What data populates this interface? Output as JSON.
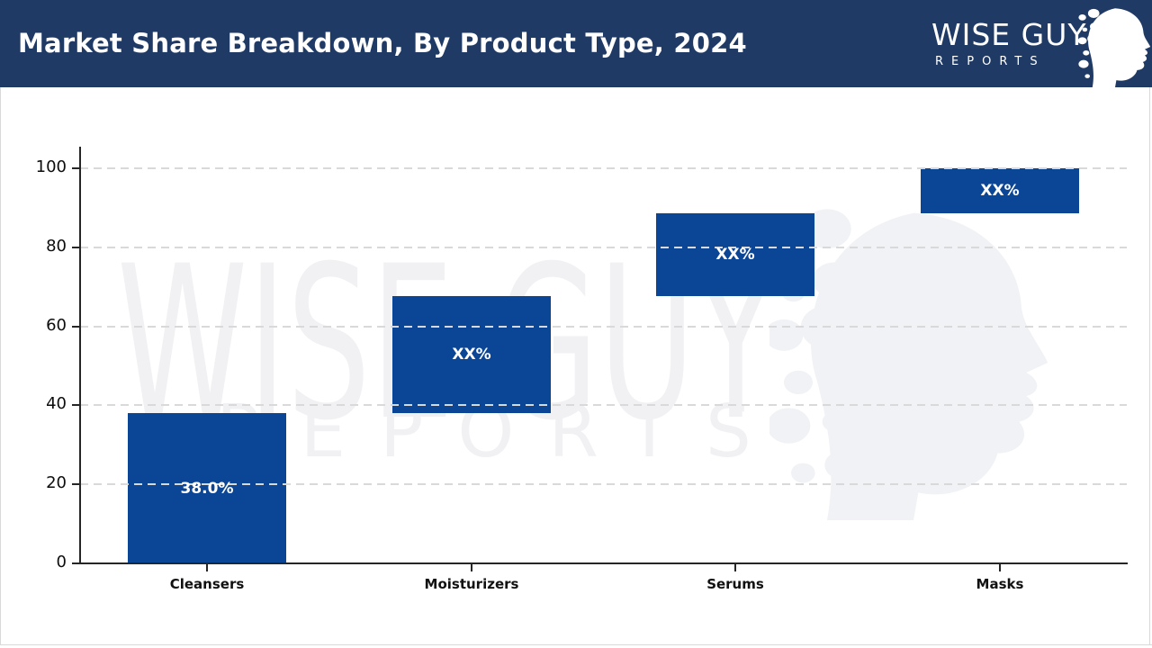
{
  "header": {
    "title": "Market Share Breakdown, By Product Type, 2024",
    "bg_color": "#203a66",
    "logo": {
      "line1": "WISE GUY",
      "line2": "REPORTS"
    }
  },
  "watermark": {
    "line1": "WISE GUY",
    "line2": "REPORTS"
  },
  "chart_data": {
    "type": "bar",
    "subtype": "waterfall",
    "title": "Market Share Breakdown, By Product Type, 2024",
    "categories": [
      "Cleansers",
      "Moisturizers",
      "Serums",
      "Masks"
    ],
    "series": [
      {
        "name": "Cleansers",
        "start": 0,
        "end": 38.0,
        "label": "38.0%"
      },
      {
        "name": "Moisturizers",
        "start": 38.0,
        "end": 67.6,
        "label": "XX%"
      },
      {
        "name": "Serums",
        "start": 67.6,
        "end": 88.6,
        "label": "XX%"
      },
      {
        "name": "Masks",
        "start": 88.6,
        "end": 100.0,
        "label": "XX%"
      }
    ],
    "yticks": [
      0,
      20,
      40,
      60,
      80,
      100
    ],
    "ylim": [
      0,
      105.5
    ],
    "xlabel": "",
    "ylabel": "",
    "grid": "horizontal-dashed",
    "legend": "none",
    "bar_color": "#0b4595",
    "bar_label_color": "#ffffff",
    "axis_color": "#262626",
    "gridline_color": "#d9d9d9"
  }
}
